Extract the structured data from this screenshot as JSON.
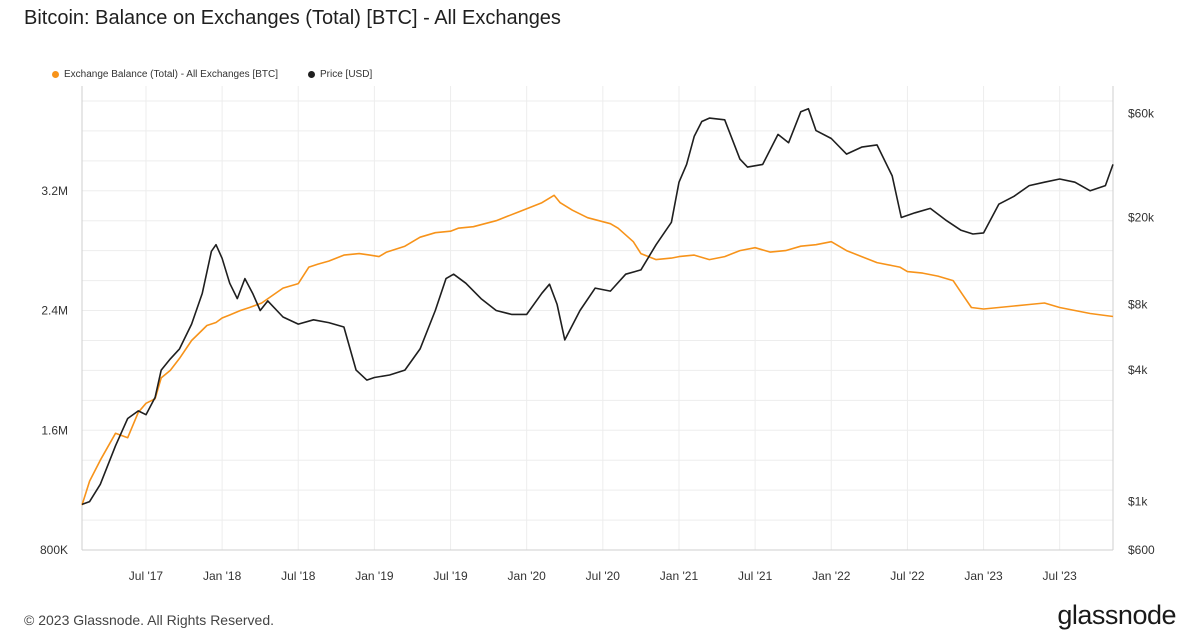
{
  "title": "Bitcoin: Balance on Exchanges (Total) [BTC] - All Exchanges",
  "footer": "© 2023 Glassnode. All Rights Reserved.",
  "brand": "glassnode",
  "colors": {
    "balance": "#F7931A",
    "price": "#1F1F1F",
    "grid": "#EDEDED",
    "axis": "#CFCFCF"
  },
  "chart_data": {
    "type": "line",
    "title": "Bitcoin: Balance on Exchanges (Total) [BTC] - All Exchanges",
    "xlabel": "",
    "ylabel_left": "",
    "ylabel_right": "",
    "x_range": [
      2017.08,
      2023.85
    ],
    "y_left": {
      "min": 800000,
      "max": 3900000,
      "ticks": [
        800000,
        1600000,
        2400000,
        3200000
      ],
      "tick_labels": [
        "800K",
        "1.6M",
        "2.4M",
        "3.2M"
      ]
    },
    "y_right": {
      "scale": "log",
      "min": 600,
      "max": 80000,
      "ticks": [
        600,
        1000,
        4000,
        8000,
        20000,
        60000
      ],
      "tick_labels": [
        "$600",
        "$1k",
        "$4k",
        "$8k",
        "$20k",
        "$60k"
      ]
    },
    "x_ticks": [
      2017.5,
      2018.0,
      2018.5,
      2019.0,
      2019.5,
      2020.0,
      2020.5,
      2021.0,
      2021.5,
      2022.0,
      2022.5,
      2023.0,
      2023.5
    ],
    "x_tick_labels": [
      "Jul '17",
      "Jan '18",
      "Jul '18",
      "Jan '19",
      "Jul '19",
      "Jan '20",
      "Jul '20",
      "Jan '21",
      "Jul '21",
      "Jan '22",
      "Jul '22",
      "Jan '23",
      "Jul '23"
    ],
    "legend": [
      "Exchange Balance (Total) - All Exchanges [BTC]",
      "Price [USD]"
    ],
    "series": [
      {
        "name": "Exchange Balance (Total) - All Exchanges [BTC]",
        "axis": "left",
        "x": [
          2017.08,
          2017.13,
          2017.2,
          2017.3,
          2017.38,
          2017.45,
          2017.5,
          2017.56,
          2017.6,
          2017.66,
          2017.72,
          2017.8,
          2017.85,
          2017.9,
          2017.96,
          2018.0,
          2018.05,
          2018.12,
          2018.18,
          2018.26,
          2018.33,
          2018.4,
          2018.5,
          2018.57,
          2018.63,
          2018.7,
          2018.8,
          2018.9,
          2018.97,
          2019.03,
          2019.08,
          2019.2,
          2019.3,
          2019.4,
          2019.5,
          2019.55,
          2019.65,
          2019.8,
          2019.95,
          2020.1,
          2020.18,
          2020.22,
          2020.3,
          2020.4,
          2020.55,
          2020.6,
          2020.7,
          2020.75,
          2020.85,
          2020.95,
          2021.0,
          2021.1,
          2021.2,
          2021.3,
          2021.4,
          2021.5,
          2021.6,
          2021.7,
          2021.8,
          2021.9,
          2022.0,
          2022.1,
          2022.2,
          2022.3,
          2022.4,
          2022.45,
          2022.5,
          2022.6,
          2022.7,
          2022.8,
          2022.86,
          2022.92,
          2023.0,
          2023.1,
          2023.2,
          2023.3,
          2023.4,
          2023.5,
          2023.6,
          2023.7,
          2023.85
        ],
        "values": [
          1100000,
          1260000,
          1400000,
          1580000,
          1550000,
          1720000,
          1780000,
          1810000,
          1950000,
          2000000,
          2080000,
          2200000,
          2250000,
          2300000,
          2320000,
          2350000,
          2370000,
          2400000,
          2420000,
          2450000,
          2500000,
          2550000,
          2580000,
          2690000,
          2710000,
          2730000,
          2770000,
          2780000,
          2770000,
          2760000,
          2790000,
          2830000,
          2890000,
          2920000,
          2930000,
          2950000,
          2960000,
          3000000,
          3060000,
          3120000,
          3170000,
          3120000,
          3070000,
          3020000,
          2980000,
          2950000,
          2860000,
          2780000,
          2740000,
          2750000,
          2760000,
          2770000,
          2740000,
          2760000,
          2800000,
          2820000,
          2790000,
          2800000,
          2830000,
          2840000,
          2860000,
          2800000,
          2760000,
          2720000,
          2700000,
          2690000,
          2660000,
          2650000,
          2630000,
          2600000,
          2510000,
          2420000,
          2410000,
          2420000,
          2430000,
          2440000,
          2450000,
          2420000,
          2400000,
          2380000,
          2360000
        ]
      },
      {
        "name": "Price [USD]",
        "axis": "right",
        "x": [
          2017.08,
          2017.13,
          2017.2,
          2017.3,
          2017.38,
          2017.45,
          2017.5,
          2017.56,
          2017.6,
          2017.66,
          2017.72,
          2017.8,
          2017.87,
          2017.93,
          2017.96,
          2018.0,
          2018.05,
          2018.1,
          2018.15,
          2018.2,
          2018.25,
          2018.3,
          2018.4,
          2018.5,
          2018.6,
          2018.7,
          2018.8,
          2018.88,
          2018.95,
          2019.0,
          2019.1,
          2019.2,
          2019.3,
          2019.4,
          2019.47,
          2019.52,
          2019.6,
          2019.7,
          2019.8,
          2019.9,
          2020.0,
          2020.1,
          2020.15,
          2020.2,
          2020.25,
          2020.35,
          2020.45,
          2020.55,
          2020.65,
          2020.75,
          2020.85,
          2020.95,
          2021.0,
          2021.05,
          2021.1,
          2021.15,
          2021.2,
          2021.3,
          2021.4,
          2021.45,
          2021.55,
          2021.65,
          2021.72,
          2021.8,
          2021.85,
          2021.9,
          2022.0,
          2022.1,
          2022.2,
          2022.3,
          2022.4,
          2022.46,
          2022.55,
          2022.65,
          2022.75,
          2022.85,
          2022.93,
          2023.0,
          2023.1,
          2023.2,
          2023.3,
          2023.4,
          2023.5,
          2023.6,
          2023.7,
          2023.8,
          2023.85
        ],
        "values": [
          970,
          1000,
          1200,
          1800,
          2400,
          2600,
          2500,
          3000,
          4000,
          4500,
          5000,
          6500,
          9000,
          14000,
          15000,
          13000,
          10000,
          8500,
          10500,
          9000,
          7500,
          8300,
          7000,
          6500,
          6800,
          6600,
          6300,
          4000,
          3600,
          3700,
          3800,
          4000,
          5000,
          7500,
          10500,
          11000,
          10000,
          8500,
          7500,
          7200,
          7200,
          9000,
          9900,
          8000,
          5500,
          7500,
          9500,
          9200,
          11000,
          11500,
          15000,
          19000,
          29000,
          35000,
          47000,
          55000,
          57000,
          56000,
          37000,
          34000,
          35000,
          48000,
          44000,
          61000,
          63000,
          50000,
          46000,
          39000,
          42000,
          43000,
          31000,
          20000,
          21000,
          22000,
          19500,
          17500,
          16800,
          17000,
          23000,
          25000,
          28000,
          29000,
          30000,
          29000,
          26500,
          28000,
          35000
        ]
      }
    ]
  }
}
